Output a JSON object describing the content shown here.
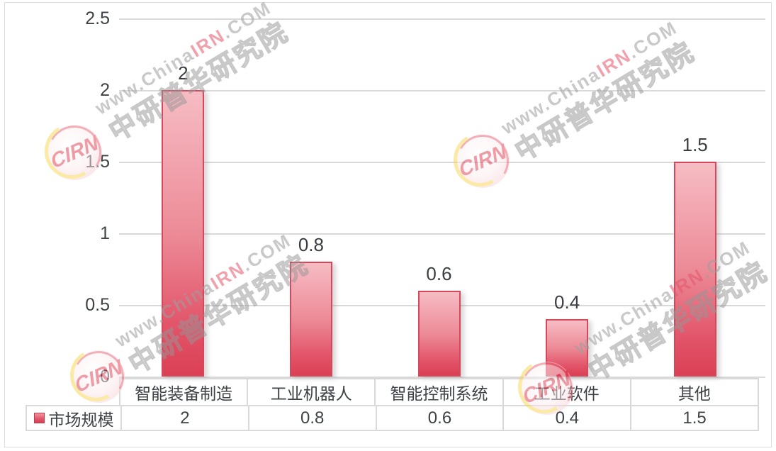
{
  "chart_data": {
    "type": "bar",
    "title": "",
    "xlabel": "",
    "ylabel": "",
    "categories": [
      "智能装备制造",
      "工业机器人",
      "智能控制系统",
      "工业软件",
      "其他"
    ],
    "series": [
      {
        "name": "市场规模",
        "values": [
          2,
          0.8,
          0.6,
          0.4,
          1.5
        ]
      }
    ],
    "value_labels": [
      "2",
      "0.8",
      "0.6",
      "0.4",
      "1.5"
    ],
    "y_ticks": [
      "2.5",
      "2",
      "1.5",
      "1",
      "0.5",
      "0"
    ],
    "ylim": [
      0,
      2.5
    ],
    "grid": true,
    "legend_position": "bottom-left-table",
    "bar_color_top": "#f6bcc3",
    "bar_color_bottom": "#db4055",
    "bar_border_color": "#d5485c",
    "gridline_color": "#d9d9d9",
    "text_color": "#3f4347"
  },
  "legend": {
    "label": "市场规模",
    "swatch_color": "#d84054"
  },
  "watermark": {
    "line1_prefix": "www.China",
    "line1_highlight": "IRN",
    "line1_suffix": ".COM",
    "line2": "中研普华研究院",
    "logo_text": "CIRN"
  }
}
